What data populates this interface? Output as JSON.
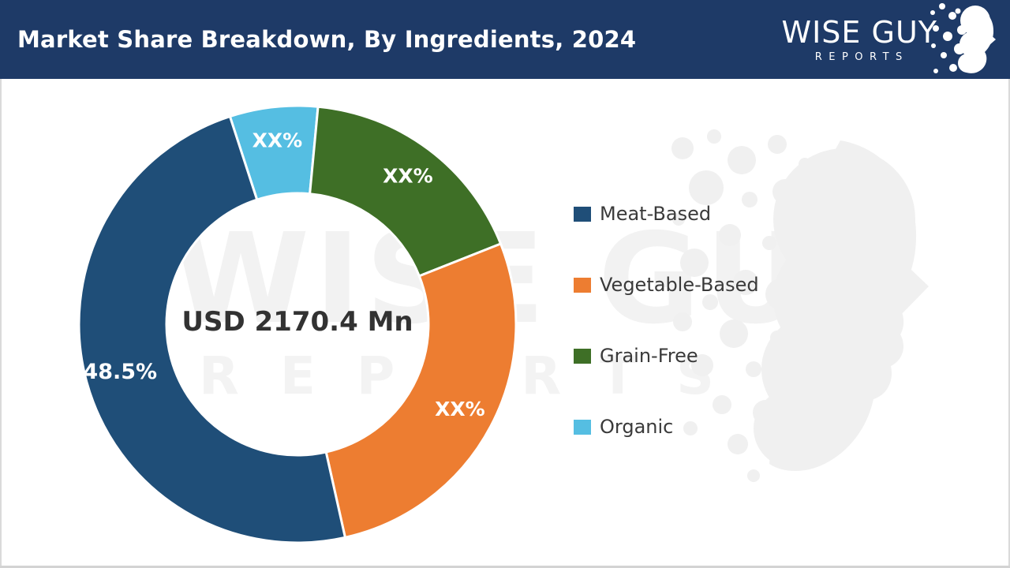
{
  "header": {
    "title": "Market Share Breakdown, By Ingredients, 2024",
    "brand": {
      "line1": "WISE GUY",
      "line2": "REPORTS"
    }
  },
  "watermark": {
    "line1": "WISE GUY",
    "line2": "REPORTS"
  },
  "chart_data": {
    "type": "pie",
    "subtype": "donut",
    "title": "Market Share Breakdown, By Ingredients, 2024",
    "center_label": "USD 2170.4 Mn",
    "unit": "percent",
    "start_angle_deg": -18,
    "direction": "clockwise-from-top",
    "legend_position": "right",
    "inner_radius_ratio": 0.6,
    "segments": [
      {
        "name": "Meat-Based",
        "value": 48.5,
        "label": "48.5%",
        "color": "#1f4e78"
      },
      {
        "name": "Vegetable-Based",
        "value": 27.5,
        "label": "XX%",
        "color": "#ed7d31"
      },
      {
        "name": "Grain-Free",
        "value": 17.5,
        "label": "XX%",
        "color": "#3e6f26"
      },
      {
        "name": "Organic",
        "value": 6.5,
        "label": "XX%",
        "color": "#55bee2"
      }
    ]
  },
  "colors": {
    "header_bg": "#1e3a67",
    "watermark": "#f2f2f2",
    "center_text": "#323232",
    "legend_text": "#3a3a3a"
  }
}
